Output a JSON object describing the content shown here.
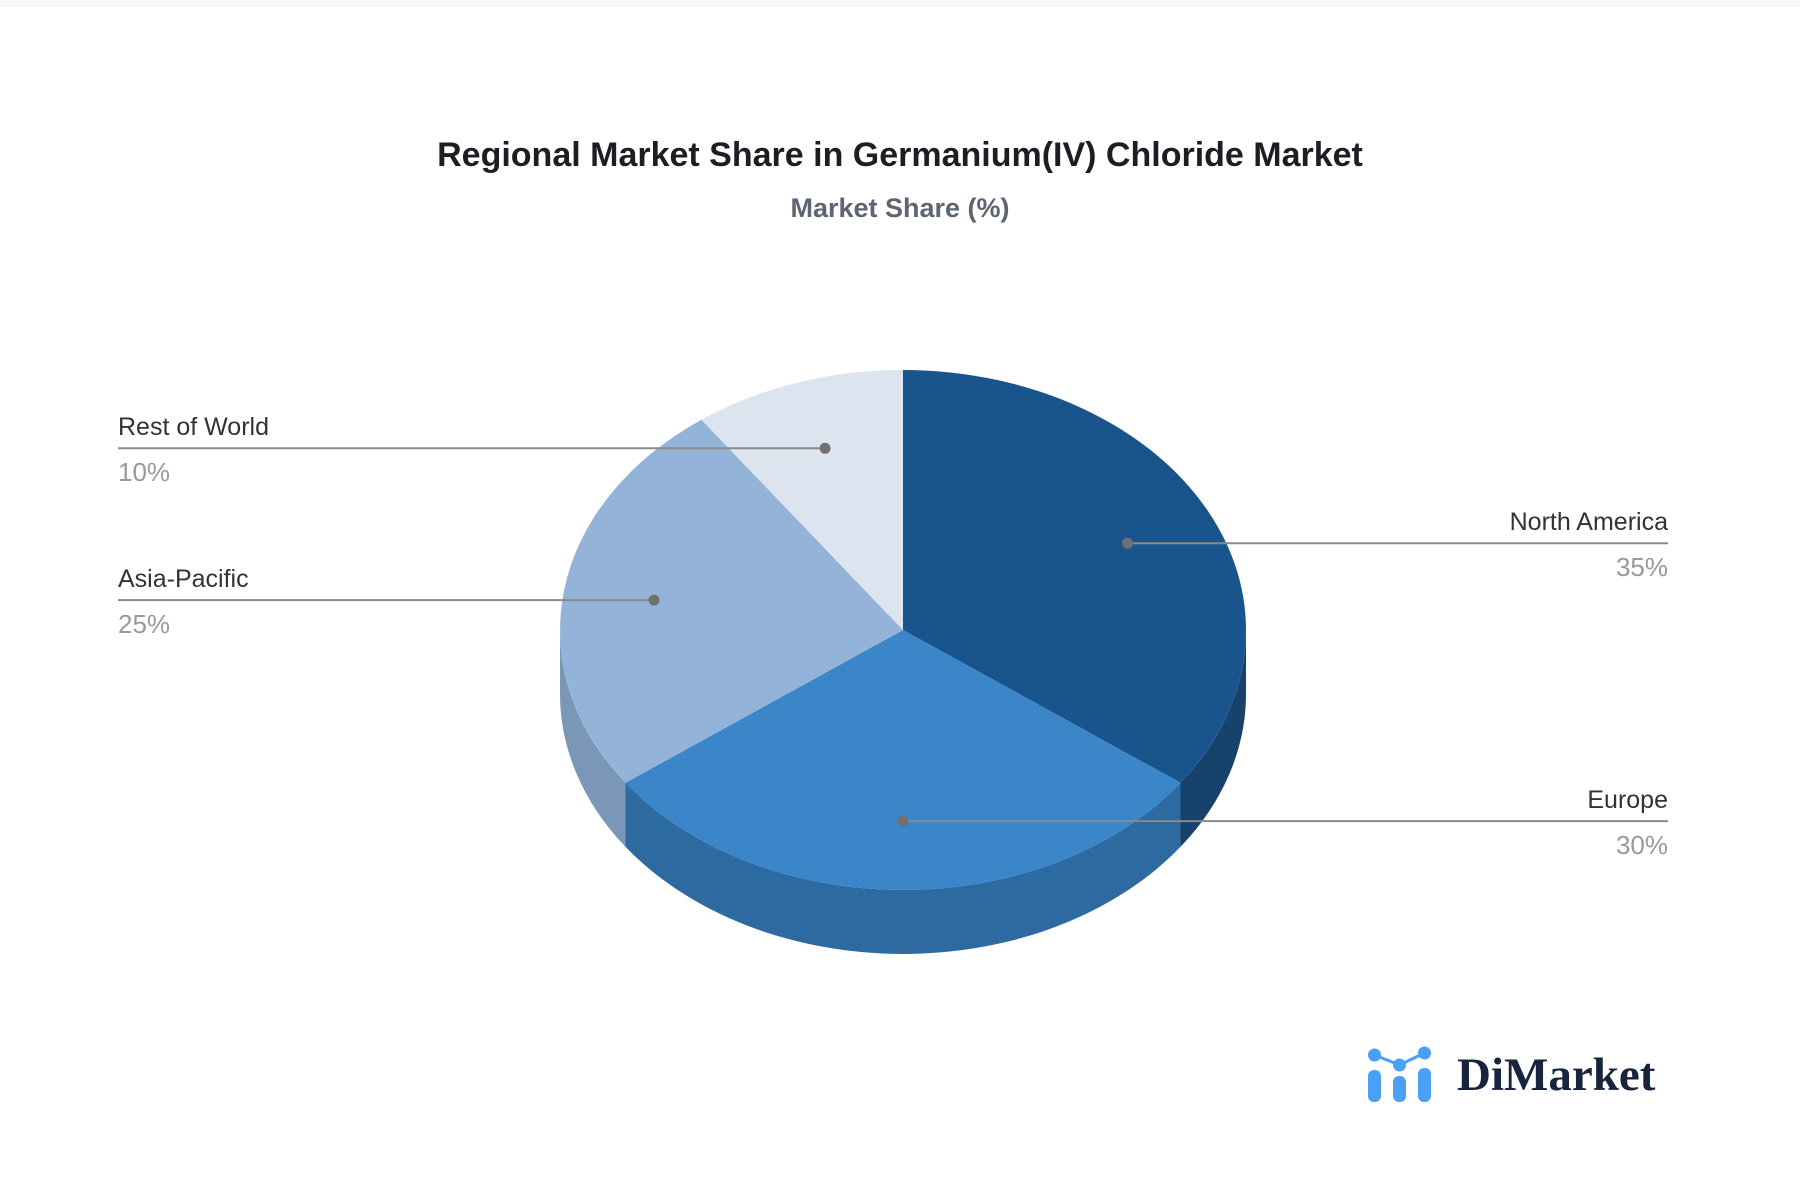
{
  "chart_data": {
    "type": "pie",
    "title": "Regional Market Share in Germanium(IV) Chloride Market",
    "subtitle": "Market Share (%)",
    "unit": "%",
    "effect": "3d",
    "rotation": "clockwise-from-top",
    "legend": "none",
    "slices": [
      {
        "label": "North America",
        "value": 35,
        "display_value": "35%",
        "color": "#1a548c",
        "side_color": "#17426b",
        "label_side": "right"
      },
      {
        "label": "Europe",
        "value": 30,
        "display_value": "30%",
        "color": "#3a86c8",
        "side_color": "#2d6aa0",
        "label_side": "right"
      },
      {
        "label": "Asia-Pacific",
        "value": 25,
        "display_value": "25%",
        "color": "#93b4d8",
        "side_color": "#7b97b8",
        "label_side": "left"
      },
      {
        "label": "Rest of World",
        "value": 10,
        "display_value": "10%",
        "color": "#dce4ef",
        "label_side": "left"
      }
    ],
    "callout_line_color": "#8a8a8a",
    "callout_dot_color": "#707070",
    "label_name_color": "#333333",
    "label_value_color": "#999999"
  },
  "branding": {
    "logo_text": "DiMarket",
    "logo_icon": "bar-line-chart-icon",
    "logo_icon_color": "#4aa0f5",
    "logo_text_color": "#17243d"
  }
}
